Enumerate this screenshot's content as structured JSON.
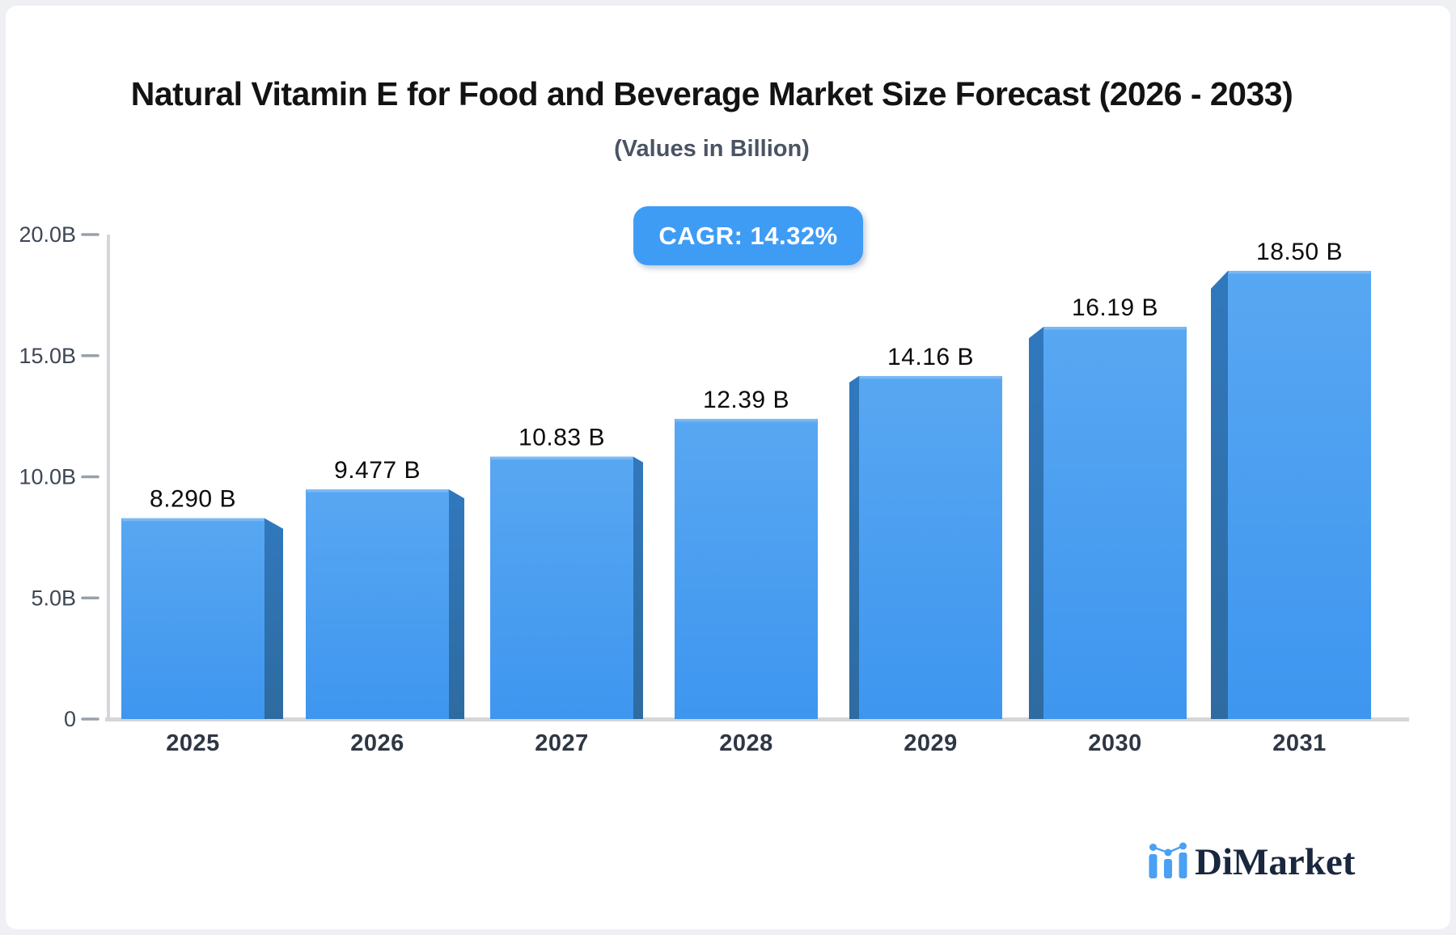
{
  "header": {
    "title": "Natural Vitamin E for Food and Beverage Market Size Forecast (2026 - 2033)",
    "subtitle": "(Values in Billion)"
  },
  "badge": {
    "label": "CAGR: 14.32%",
    "background": "#3f9cf5",
    "text_color": "#ffffff"
  },
  "chart_data": {
    "type": "bar",
    "title": "Natural Vitamin E for Food and Beverage Market Size Forecast (2026 - 2033)",
    "subtitle": "(Values in Billion)",
    "categories": [
      "2025",
      "2026",
      "2027",
      "2028",
      "2029",
      "2030",
      "2031"
    ],
    "values": [
      8.29,
      9.477,
      10.83,
      12.39,
      14.16,
      16.19,
      18.5
    ],
    "value_labels": [
      "8.290 B",
      "9.477 B",
      "10.83 B",
      "12.39 B",
      "14.16 B",
      "16.19 B",
      "18.50 B"
    ],
    "xlabel": "",
    "ylabel": "",
    "ylim": [
      0,
      20
    ],
    "y_ticks": [
      {
        "value": 0,
        "label": "0"
      },
      {
        "value": 5,
        "label": "5.0B"
      },
      {
        "value": 10,
        "label": "10.0B"
      },
      {
        "value": 15,
        "label": "15.0B"
      },
      {
        "value": 20,
        "label": "20.0B"
      }
    ],
    "grid": false,
    "legend": "none",
    "style": "3d-perspective-bars",
    "colors": {
      "bar_face_top": "#58a7f2",
      "bar_face_bottom": "#3e96ef",
      "bar_side_top": "#3078bd",
      "bar_side_bottom": "#2e6ba0",
      "bar_top_highlight": "#7db9f5",
      "axis_line": "#d5d6da",
      "tick_mark": "#98a0aa",
      "tick_label": "#3e4756",
      "category_label": "#2f3744",
      "value_label": "#0b0b0b"
    }
  },
  "logo": {
    "text": "DiMarket",
    "icon": "bar-chart-logo-icon",
    "icon_color": "#4aa0f3",
    "text_color": "#19273f"
  }
}
